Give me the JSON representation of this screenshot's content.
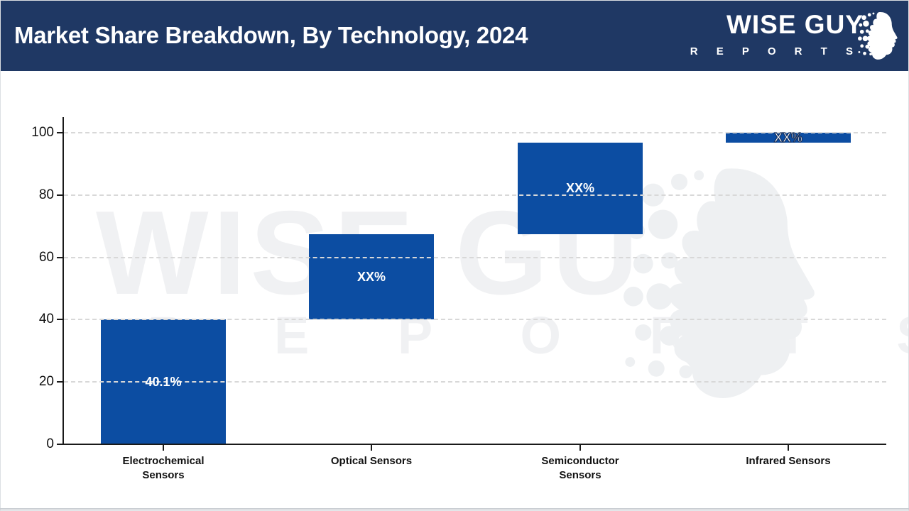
{
  "header": {
    "title": "Market Share Breakdown, By Technology, 2024",
    "bg_color": "#1f3864",
    "logo": {
      "wordmark": "WISE GUY",
      "sub": "R E P O R T S",
      "face_icon": "dotted-head-profile-icon"
    }
  },
  "watermark": {
    "word": "WISE GU",
    "sub": "R E P O R T S",
    "face_icon": "dotted-head-profile-icon"
  },
  "chart_data": {
    "type": "bar",
    "subtype": "waterfall",
    "title": "Market Share Breakdown, By Technology, 2024",
    "xlabel": "",
    "ylabel": "",
    "categories": [
      "Electrochemical Sensors",
      "Optical Sensors",
      "Semiconductor Sensors",
      "Infrared Sensors"
    ],
    "segments": [
      {
        "category": "Electrochemical Sensors",
        "start": 0,
        "end": 40.1,
        "value": 40.1,
        "label": "40.1%"
      },
      {
        "category": "Optical Sensors",
        "start": 40.1,
        "end": 67.5,
        "value": 27.4,
        "label": "XX%"
      },
      {
        "category": "Semiconductor Sensors",
        "start": 67.5,
        "end": 96.8,
        "value": 29.3,
        "label": "XX%"
      },
      {
        "category": "Infrared Sensors",
        "start": 96.8,
        "end": 100,
        "value": 3.2,
        "label": "XX%"
      }
    ],
    "yticks": [
      0,
      20,
      40,
      60,
      80,
      100
    ],
    "ylim": [
      0,
      100
    ],
    "grid": "dashed-horizontal",
    "legend": "none",
    "bar_color": "#0c4da2",
    "label_color": "#ffffff",
    "axis_color": "#1a1a1a",
    "gridline_color": "#d8d8d8"
  }
}
